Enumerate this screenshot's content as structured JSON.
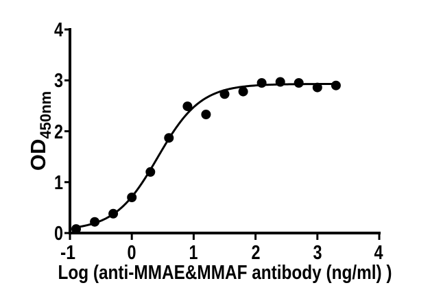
{
  "chart_data": {
    "type": "scatter",
    "title": "",
    "xlabel": "Log (anti-MMAE&MMAF antibody (ng/ml) )",
    "ylabel_main": "OD",
    "ylabel_subscript": "450nm",
    "xlim": [
      -1,
      4
    ],
    "ylim": [
      0,
      4
    ],
    "xticks": [
      "-1",
      "0",
      "1",
      "2",
      "3",
      "4"
    ],
    "yticks": [
      "0",
      "1",
      "2",
      "3",
      "4"
    ],
    "grid": false,
    "legend_position": "none",
    "background_color": "#ffffff",
    "axis_color": "#000000",
    "marker": {
      "shape": "circle-filled",
      "fill": "#000000",
      "radius": 7
    },
    "curve": {
      "model": "four_parameter_logistic",
      "color": "#000000",
      "stroke_width": 3,
      "bottom": 0.05,
      "top": 2.93,
      "logEC50": 0.42,
      "hillslope": 1.25,
      "x_range": [
        -0.92,
        3.32
      ]
    },
    "points": [
      {
        "x": -0.9,
        "y": 0.08
      },
      {
        "x": -0.6,
        "y": 0.22
      },
      {
        "x": -0.3,
        "y": 0.38
      },
      {
        "x": 0.0,
        "y": 0.7
      },
      {
        "x": 0.3,
        "y": 1.2
      },
      {
        "x": 0.6,
        "y": 1.87
      },
      {
        "x": 0.9,
        "y": 2.49
      },
      {
        "x": 1.2,
        "y": 2.33
      },
      {
        "x": 1.5,
        "y": 2.73
      },
      {
        "x": 1.8,
        "y": 2.78
      },
      {
        "x": 2.1,
        "y": 2.95
      },
      {
        "x": 2.4,
        "y": 2.97
      },
      {
        "x": 2.7,
        "y": 2.95
      },
      {
        "x": 3.0,
        "y": 2.86
      },
      {
        "x": 3.3,
        "y": 2.9
      }
    ]
  }
}
